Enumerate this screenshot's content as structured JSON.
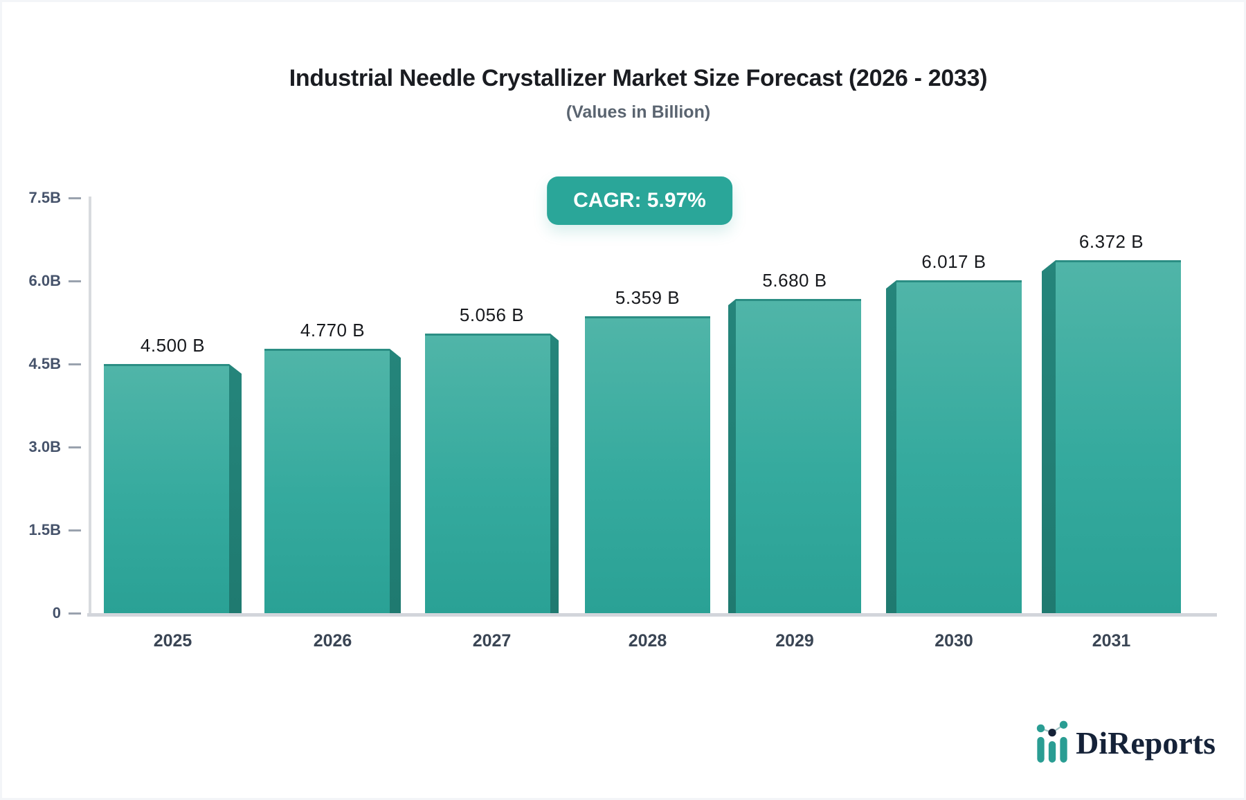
{
  "title": "Industrial Needle Crystallizer Market Size Forecast (2026 - 2033)",
  "subtitle": "(Values in Billion)",
  "badge": {
    "label": "CAGR: 5.97%"
  },
  "chart_data": {
    "type": "bar",
    "title": "Industrial Needle Crystallizer Market Size Forecast (2026 - 2033)",
    "subtitle": "(Values in Billion)",
    "categories": [
      "2025",
      "2026",
      "2027",
      "2028",
      "2029",
      "2030",
      "2031"
    ],
    "values": [
      4.5,
      4.77,
      5.056,
      5.359,
      5.68,
      6.017,
      6.372
    ],
    "value_labels": [
      "4.500 B",
      "4.770 B",
      "5.056 B",
      "5.359 B",
      "5.680 B",
      "6.017 B",
      "6.372 B"
    ],
    "xlabel": "",
    "ylabel": "",
    "ylim": [
      0,
      7.5
    ],
    "y_ticks": [
      {
        "label": "7.5B",
        "value": 7.5
      },
      {
        "label": "6.0B",
        "value": 6.0
      },
      {
        "label": "4.5B",
        "value": 4.5
      },
      {
        "label": "3.0B",
        "value": 3.0
      },
      {
        "label": "1.5B",
        "value": 1.5
      },
      {
        "label": "0",
        "value": 0
      }
    ],
    "grid": false,
    "legend": "none",
    "annotation": "CAGR: 5.97%"
  },
  "colors": {
    "accent": "#2aa699",
    "bar_top": "#50b5a8",
    "bar_bottom": "#2aa195",
    "bar_side": "#1f7a70",
    "axis_line": "#d8dbdf",
    "tick_text": "#46536b",
    "x_tick_text": "#3a4554",
    "title_text": "#1a1c21",
    "subtitle_text": "#5a6470",
    "logo_navy": "#152238",
    "logo_teal": "#2a9d93"
  },
  "logo": {
    "text": "DiReports",
    "icon": "mini-bar-line-chart-icon"
  }
}
